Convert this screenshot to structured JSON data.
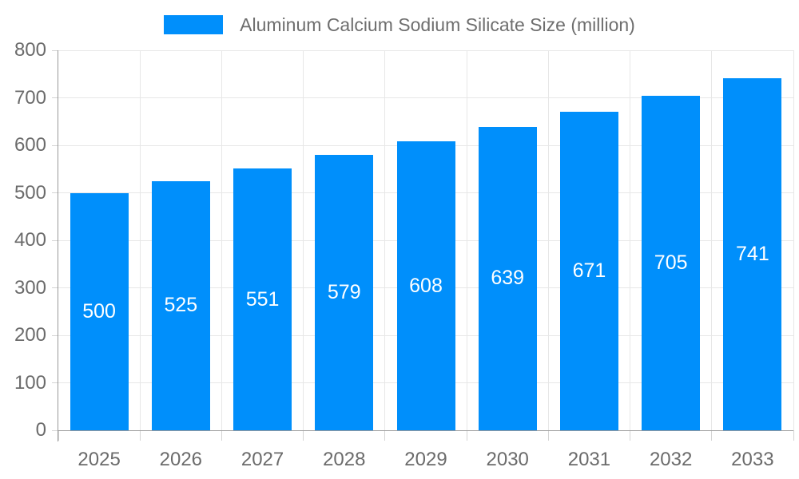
{
  "chart_data": {
    "type": "bar",
    "title": "Aluminum Calcium Sodium Silicate Size (million)",
    "categories": [
      "2025",
      "2026",
      "2027",
      "2028",
      "2029",
      "2030",
      "2031",
      "2032",
      "2033"
    ],
    "values": [
      500,
      525,
      551,
      579,
      608,
      639,
      671,
      705,
      741
    ],
    "xlabel": "",
    "ylabel": "",
    "ylim": [
      0,
      800
    ],
    "yticks": [
      0,
      100,
      200,
      300,
      400,
      500,
      600,
      700,
      800
    ],
    "grid": true,
    "legend_position": "top",
    "colors": {
      "bar": "#008FFB",
      "bar_value_text": "#ffffff",
      "gridline": "#e7e7e7",
      "axis_line": "#999999",
      "tick": "#d4d4d4",
      "axis_text": "#6b6b6b",
      "legend_text": "#6e6e6e"
    }
  }
}
